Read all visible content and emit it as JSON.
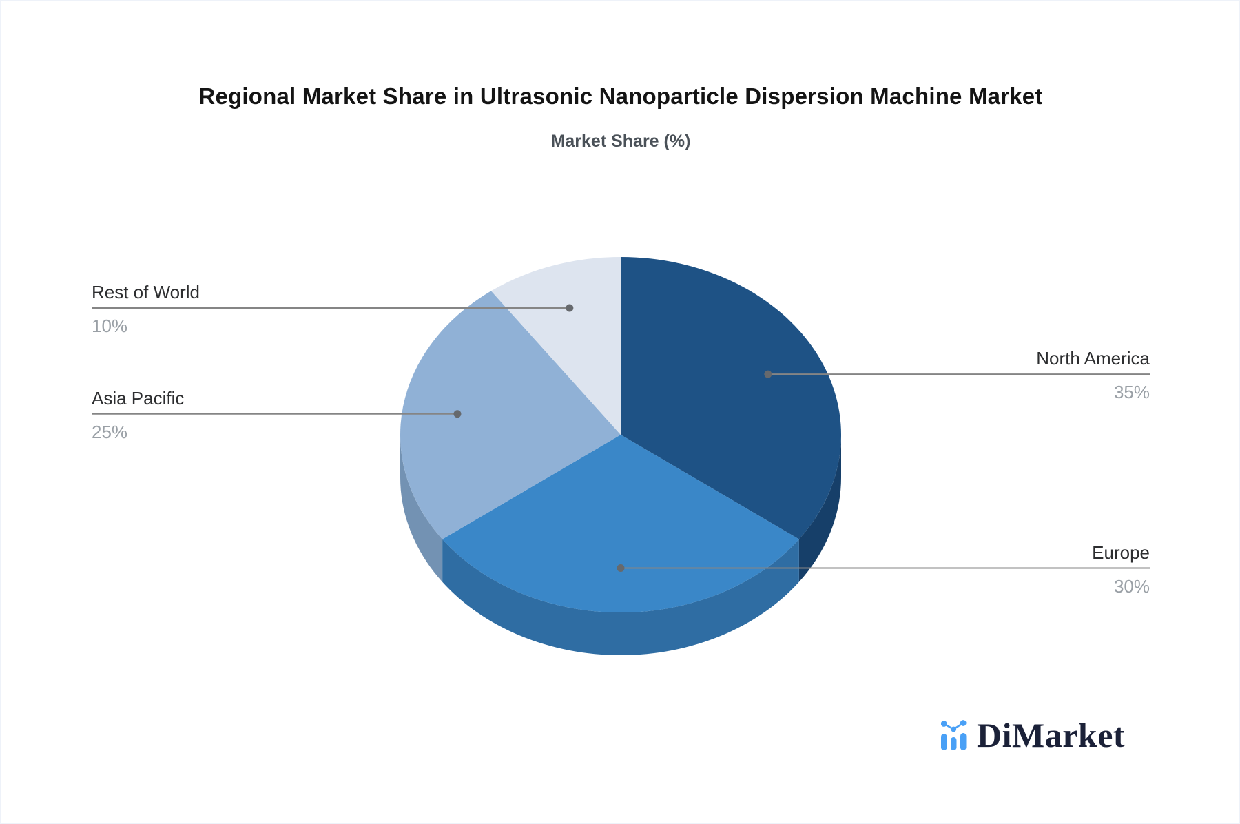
{
  "chart_data": {
    "type": "pie",
    "title": "Regional Market Share in Ultrasonic Nanoparticle Dispersion Machine Market",
    "subtitle": "Market Share (%)",
    "unit": "%",
    "style": "3d-pie",
    "start_position": "12-oclock-clockwise",
    "legend_position": "callout-labels",
    "slices": [
      {
        "name": "North America",
        "value": 35,
        "pct_label": "35%",
        "color": "#1e5285",
        "side_color": "#163f69",
        "label_side": "right"
      },
      {
        "name": "Europe",
        "value": 30,
        "pct_label": "30%",
        "color": "#3a87c8",
        "side_color": "#2f6da3",
        "label_side": "right"
      },
      {
        "name": "Asia Pacific",
        "value": 25,
        "pct_label": "25%",
        "color": "#90b1d6",
        "side_color": "#7392b3",
        "label_side": "left"
      },
      {
        "name": "Rest of World",
        "value": 10,
        "pct_label": "10%",
        "color": "#dde4ef",
        "side_color": "#b9c6d9",
        "label_side": "left"
      }
    ],
    "callout_line_color": "#858585",
    "callout_dot_color": "#66696d"
  },
  "logo": {
    "text": "DiMarket",
    "icon": "bar-chart-trend-icon",
    "icon_color": "#49a0f6",
    "text_color": "#1b2138"
  }
}
